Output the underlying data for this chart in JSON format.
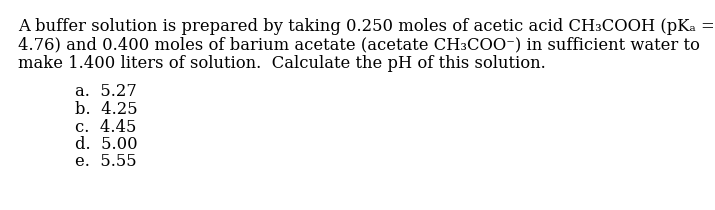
{
  "lines": [
    "A buffer solution is prepared by taking 0.250 moles of acetic acid CH₃COOH (pKₐ =",
    "4.76) and 0.400 moles of barium acetate (acetate CH₃COO⁻) in sufficient water to",
    "make 1.400 liters of solution.  Calculate the pH of this solution."
  ],
  "choices": [
    "a.  5.27",
    "b.  4.25",
    "c.  4.45",
    "d.  5.00",
    "e.  5.55"
  ],
  "font_size": 11.8,
  "choice_font_size": 11.8,
  "text_color": "#000000",
  "background_color": "#ffffff",
  "fig_width": 7.15,
  "fig_height": 2.1,
  "dpi": 100
}
